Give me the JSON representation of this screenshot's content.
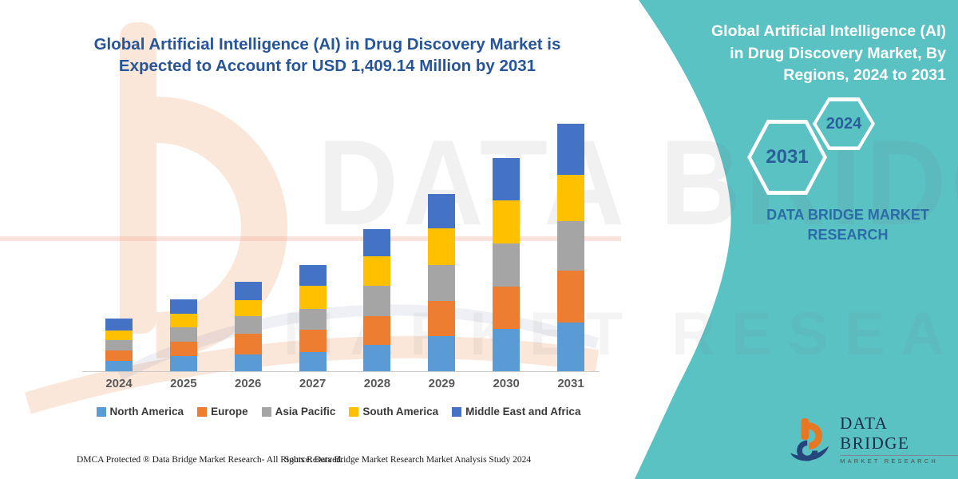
{
  "header": {
    "title_line1": "Global Artificial Intelligence (AI) in Drug Discovery Market is",
    "title_line2": "Expected to Account for USD 1,409.14 Million by 2031"
  },
  "right_panel": {
    "title_lines": {
      "0": "Global Artificial Intelligence (AI)",
      "1": "in Drug Discovery Market, By",
      "2": "Regions, 2024 to 2031"
    },
    "hex_back_year": "2031",
    "hex_front_year": "2024",
    "brand_line1": "DATA BRIDGE MARKET",
    "brand_line2": "RESEARCH",
    "logo_name": "DATA BRIDGE",
    "logo_sub": "MARKET RESEARCH"
  },
  "watermark": {
    "line1": "DATA BRIDGE",
    "line2": "MARKET RESEARCH"
  },
  "footer": {
    "left": "DMCA Protected ® Data Bridge Market Research-  All Rights Reserved.",
    "source": "Source: Data Bridge Market Research  Market Analysis Study 2024"
  },
  "colors": {
    "teal_panel": "#5bc2c4",
    "title_blue": "#27559a",
    "panel_text_blue": "#2b6ca8",
    "hex_year_blue": "#2a6099",
    "axis_label_gray": "#595959",
    "logo_navy": "#1b2b4b",
    "logo_orange": "#e87722"
  },
  "chart_data": {
    "type": "bar",
    "stacked": true,
    "title": "Global Artificial Intelligence (AI) in Drug Discovery Market, By Regions, 2024 to 2031",
    "unit": "USD Million",
    "categories": [
      "2024",
      "2025",
      "2026",
      "2027",
      "2028",
      "2029",
      "2030",
      "2031"
    ],
    "series": [
      {
        "name": "North America",
        "color": "#5B9BD5",
        "values": [
          59,
          85,
          96,
          111,
          149,
          202,
          243,
          276
        ]
      },
      {
        "name": "Europe",
        "color": "#ED7D31",
        "values": [
          61,
          85,
          117,
          126,
          167,
          197,
          237,
          296
        ]
      },
      {
        "name": "Asia Pacific",
        "color": "#A5A5A5",
        "values": [
          58,
          79,
          103,
          120,
          170,
          207,
          247,
          281
        ]
      },
      {
        "name": "South America",
        "color": "#FFC000",
        "values": [
          56,
          79,
          88,
          129,
          167,
          208,
          247,
          267
        ]
      },
      {
        "name": "Middle East and Africa",
        "color": "#4472C4",
        "values": [
          67,
          79,
          106,
          118,
          156,
          196,
          239,
          289.14
        ]
      }
    ],
    "totals": [
      301,
      407,
      510,
      604,
      809,
      1010,
      1213,
      1409.14
    ],
    "ylim": [
      0,
      1450
    ],
    "xlabel": "",
    "ylabel": "",
    "grid": false,
    "legend_position": "bottom"
  }
}
